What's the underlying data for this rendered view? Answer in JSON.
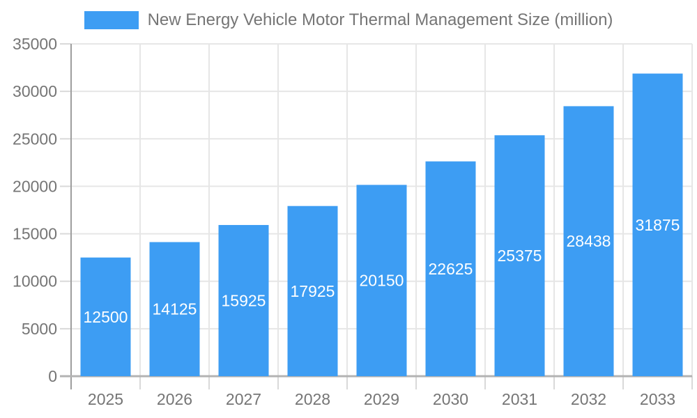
{
  "legend": {
    "label": "New Energy Vehicle Motor Thermal Management Size (million)"
  },
  "chart_data": {
    "type": "bar",
    "title": "New Energy Vehicle Motor Thermal Management Size (million)",
    "series_name": "New Energy Vehicle Motor Thermal Management Size (million)",
    "categories": [
      "2025",
      "2026",
      "2027",
      "2028",
      "2029",
      "2030",
      "2031",
      "2032",
      "2033"
    ],
    "values": [
      12500,
      14125,
      15925,
      17925,
      20150,
      22625,
      25375,
      28438,
      31875
    ],
    "value_labels": [
      "12500",
      "14125",
      "15925",
      "17925",
      "20150",
      "22625",
      "25375",
      "28438",
      "31875"
    ],
    "xlabel": "",
    "ylabel": "",
    "ylim": [
      0,
      35000
    ],
    "ytick_step": 5000,
    "yticks": [
      0,
      5000,
      10000,
      15000,
      20000,
      25000,
      30000,
      35000
    ],
    "ytick_labels": [
      "0",
      "5000",
      "10000",
      "15000",
      "20000",
      "25000",
      "30000",
      "35000"
    ],
    "grid": true,
    "legend_position": "top",
    "colors": {
      "bar": "#3D9DF3",
      "value_label": "#FFFFFF",
      "axis_text": "#757575",
      "grid_line": "#E6E6E6",
      "tick_line": "#D9D9D9",
      "x_axis_line": "#B3B3B3",
      "y_axis_line": "#9E9E9E",
      "background": "#FFFFFF"
    }
  }
}
